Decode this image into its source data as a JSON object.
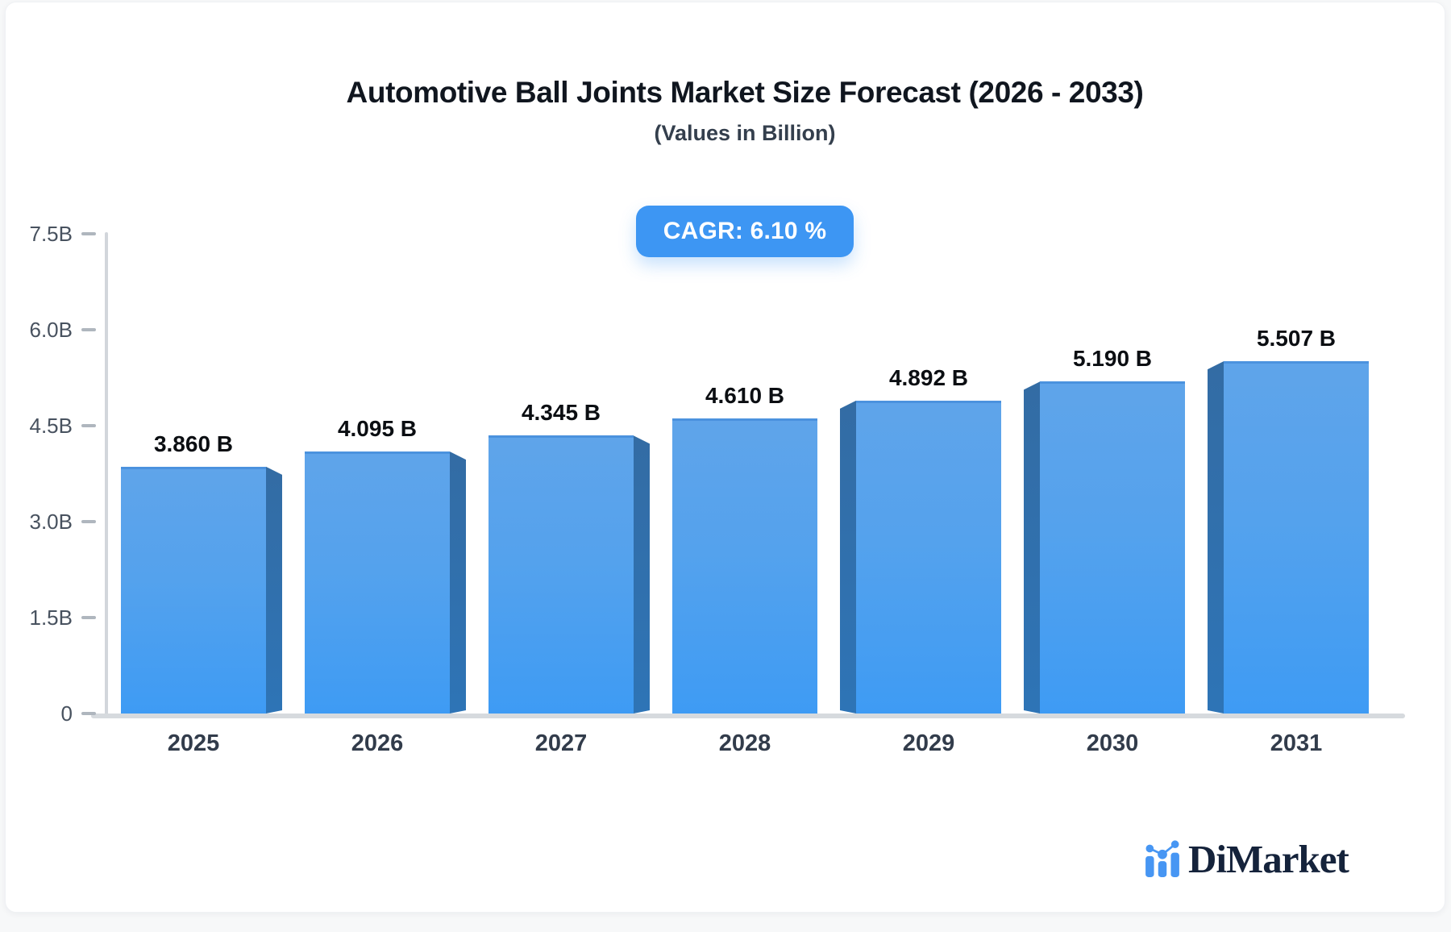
{
  "header": {
    "title": "Automotive Ball Joints Market Size Forecast (2026 - 2033)",
    "subtitle": "(Values in Billion)",
    "cagr_badge": "CAGR: 6.10 %"
  },
  "chart_data": {
    "type": "bar",
    "title": "Automotive Ball Joints Market Size Forecast (2026 - 2033)",
    "subtitle": "(Values in Billion)",
    "unit": "Billion",
    "cagr_percent": 6.1,
    "categories": [
      "2025",
      "2026",
      "2027",
      "2028",
      "2029",
      "2030",
      "2031"
    ],
    "values": [
      3.86,
      4.095,
      4.345,
      4.61,
      4.892,
      5.19,
      5.507
    ],
    "value_labels": [
      "3.860 B",
      "4.095 B",
      "4.345 B",
      "4.610 B",
      "4.892 B",
      "5.190 B",
      "5.507 B"
    ],
    "ylim": [
      0,
      7.5
    ],
    "y_ticks": [
      {
        "label": "7.5B",
        "value": 7.5
      },
      {
        "label": "6.0B",
        "value": 6.0
      },
      {
        "label": "4.5B",
        "value": 4.5
      },
      {
        "label": "3.0B",
        "value": 3.0
      },
      {
        "label": "1.5B",
        "value": 1.5
      },
      {
        "label": "0",
        "value": 0
      }
    ],
    "grid": "off",
    "legend": "none",
    "bar_style": "3d-perspective-center-vanishing"
  },
  "colors": {
    "badge_bg": "#3D96F3",
    "bar_top": "#5FA4EA",
    "bar_bottom": "#3E9BF4",
    "bar_side": "#2E74B6",
    "axis_line": "#D6DADE",
    "logo_blue": "#4796F3",
    "logo_navy": "#15233B"
  },
  "footer": {
    "brand": "DiMarket"
  }
}
